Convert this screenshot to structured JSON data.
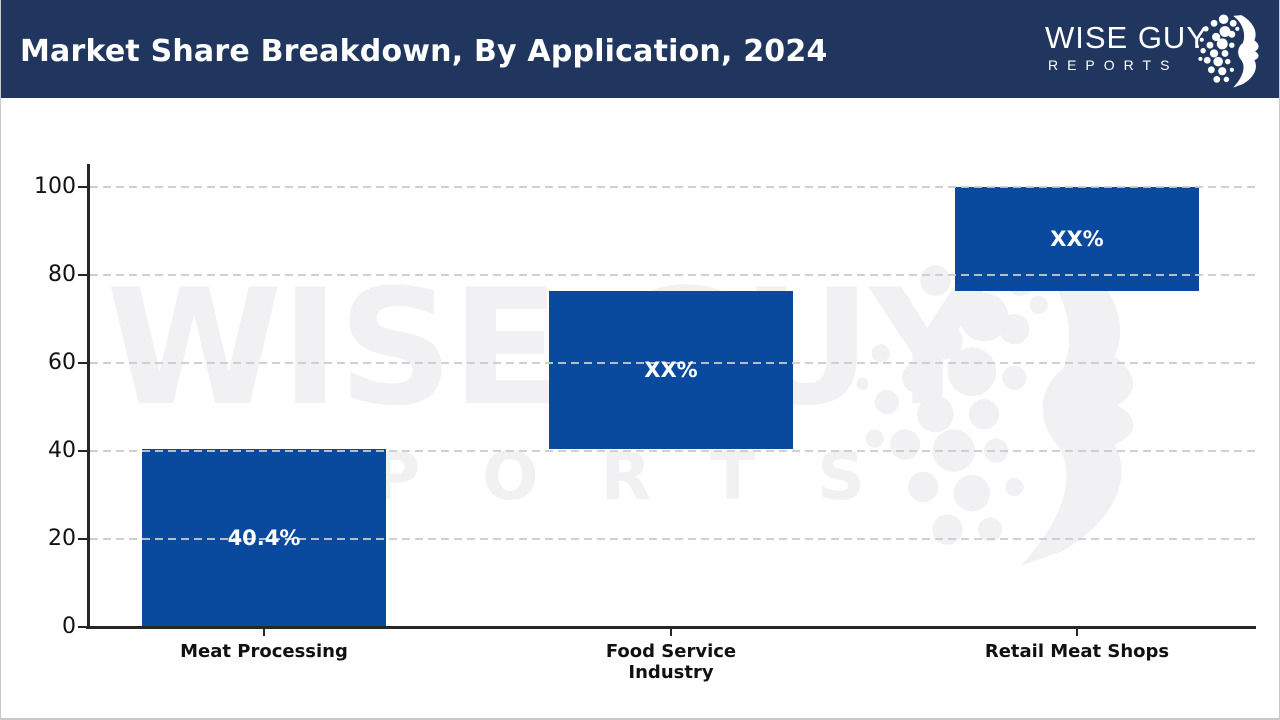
{
  "header": {
    "title": "Market Share Breakdown, By Application, 2024",
    "logo_line1": "WISE GUY",
    "logo_line2": "REPORTS"
  },
  "watermark": {
    "line1": "WISE GUY",
    "line2": "REPORTS"
  },
  "chart_data": {
    "type": "bar",
    "variant": "stacked-waterfall",
    "title": "Market Share Breakdown, By Application, 2024",
    "categories": [
      "Meat Processing",
      "Food Service\nIndustry",
      "Retail Meat Shops"
    ],
    "segments": [
      {
        "category": "Meat Processing",
        "start": 0,
        "end": 40.4,
        "label": "40.4%"
      },
      {
        "category": "Food Service Industry",
        "start": 40.4,
        "end": 76.4,
        "label": "XX%"
      },
      {
        "category": "Retail Meat Shops",
        "start": 76.4,
        "end": 100,
        "label": "XX%"
      }
    ],
    "yticks": [
      0,
      20,
      40,
      60,
      80,
      100
    ],
    "ylim": [
      0,
      105
    ],
    "xlabel": "",
    "ylabel": "",
    "grid": "dashed-horizontal",
    "legend": "none",
    "bar_color": "#0a4a9e",
    "axis_color": "#262626",
    "grid_color": "#cbcbcb",
    "header_color": "#21365f"
  }
}
